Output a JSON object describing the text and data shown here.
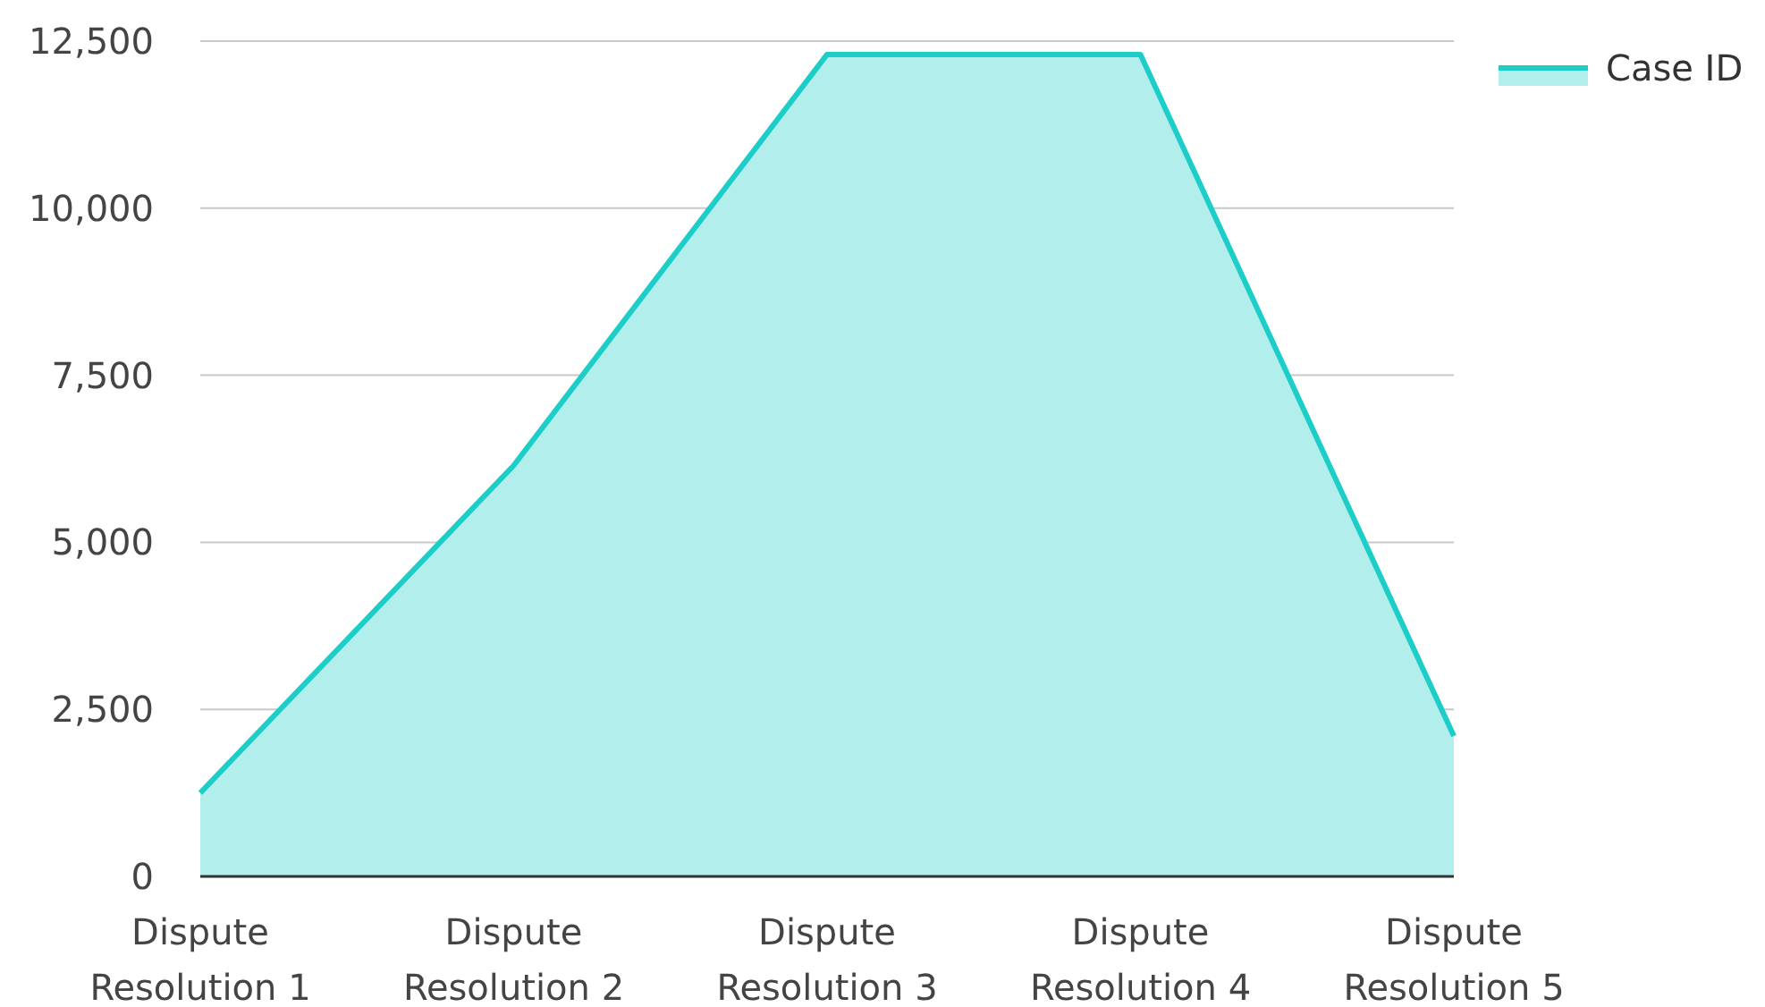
{
  "chart_data": {
    "type": "area",
    "categories": [
      "Dispute Resolution 1",
      "Dispute Resolution 2",
      "Dispute Resolution 3",
      "Dispute Resolution 4",
      "Dispute Resolution 5"
    ],
    "series": [
      {
        "name": "Case ID",
        "color": "#1ccdc8",
        "values": [
          1250,
          6150,
          12300,
          12300,
          2100
        ]
      }
    ],
    "ylim": [
      0,
      12500
    ],
    "yticks": [
      0,
      {
        "value": 2500,
        "label": "2,500"
      },
      {
        "value": 5000,
        "label": "5,000"
      },
      {
        "value": 7500,
        "label": "7,500"
      },
      {
        "value": 10000,
        "label": "10,000"
      },
      {
        "value": 12500,
        "label": "12,500"
      }
    ],
    "grid": "y",
    "legend": "top right"
  }
}
